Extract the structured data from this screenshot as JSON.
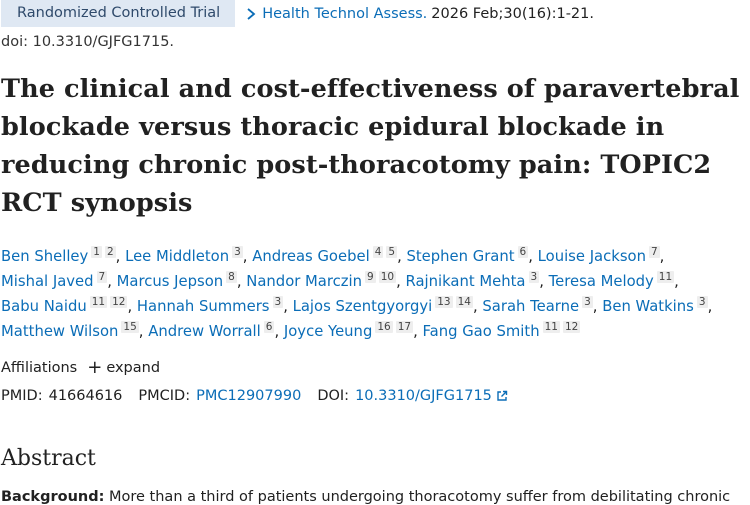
{
  "header": {
    "badge": "Randomized Controlled Trial",
    "journal": "Health Technol Assess.",
    "citation": "2026 Feb;30(16):1-21.",
    "doi_line": "doi: 10.3310/GJFG1715."
  },
  "title": "The clinical and cost-effectiveness of paravertebral blockade versus thoracic epidural blockade in reducing chronic post-thoracotomy pain: TOPIC2 RCT synopsis",
  "authors": [
    {
      "name": "Ben Shelley",
      "affs": [
        "1",
        "2"
      ]
    },
    {
      "name": "Lee Middleton",
      "affs": [
        "3"
      ]
    },
    {
      "name": "Andreas Goebel",
      "affs": [
        "4",
        "5"
      ]
    },
    {
      "name": "Stephen Grant",
      "affs": [
        "6"
      ]
    },
    {
      "name": "Louise Jackson",
      "affs": [
        "7"
      ]
    },
    {
      "name": "Mishal Javed",
      "affs": [
        "7"
      ]
    },
    {
      "name": "Marcus Jepson",
      "affs": [
        "8"
      ]
    },
    {
      "name": "Nandor Marczin",
      "affs": [
        "9",
        "10"
      ]
    },
    {
      "name": "Rajnikant Mehta",
      "affs": [
        "3"
      ]
    },
    {
      "name": "Teresa Melody",
      "affs": [
        "11"
      ]
    },
    {
      "name": "Babu Naidu",
      "affs": [
        "11",
        "12"
      ]
    },
    {
      "name": "Hannah Summers",
      "affs": [
        "3"
      ]
    },
    {
      "name": "Lajos Szentgyorgyi",
      "affs": [
        "13",
        "14"
      ]
    },
    {
      "name": "Sarah Tearne",
      "affs": [
        "3"
      ]
    },
    {
      "name": "Ben Watkins",
      "affs": [
        "3"
      ]
    },
    {
      "name": "Matthew Wilson",
      "affs": [
        "15"
      ]
    },
    {
      "name": "Andrew Worrall",
      "affs": [
        "6"
      ]
    },
    {
      "name": "Joyce Yeung",
      "affs": [
        "16",
        "17"
      ]
    },
    {
      "name": "Fang Gao Smith",
      "affs": [
        "11",
        "12"
      ]
    }
  ],
  "affiliations": {
    "label": "Affiliations",
    "expand": "expand"
  },
  "ids": {
    "pmid_label": "PMID:",
    "pmid": "41664616",
    "pmcid_label": "PMCID:",
    "pmcid": "PMC12907990",
    "doi_label": "DOI:",
    "doi": "10.3310/GJFG1715"
  },
  "abstract": {
    "heading": "Abstract",
    "first_label": "Background:",
    "first_text": "More than a third of patients undergoing thoracotomy suffer from debilitating chronic"
  }
}
